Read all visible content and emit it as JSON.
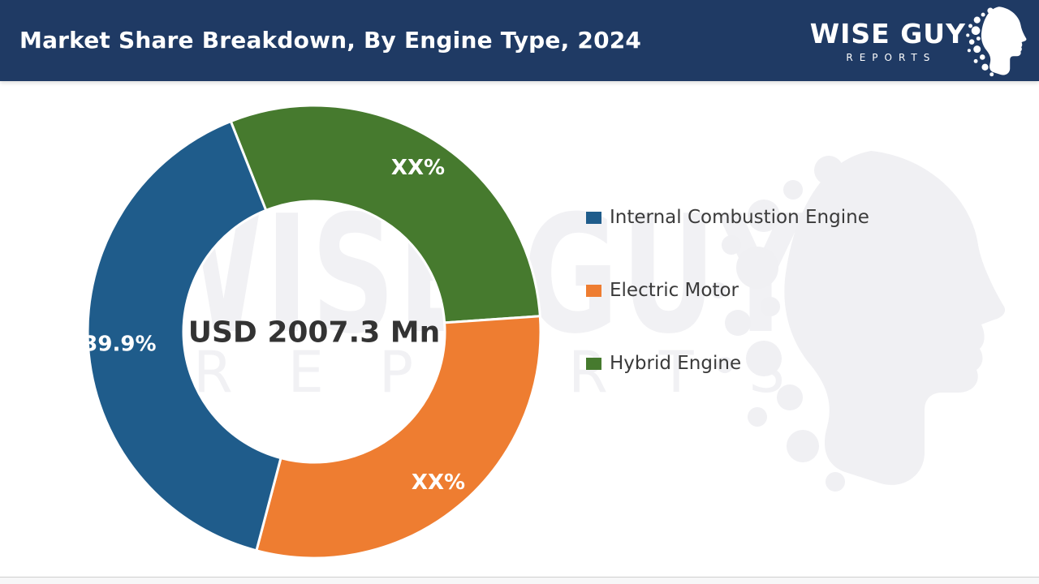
{
  "header": {
    "title": "Market Share Breakdown, By Engine Type, 2024",
    "logo": {
      "line1": "WISE GUY",
      "line2": "REPORTS"
    }
  },
  "watermark": {
    "line1": "WISE GUY",
    "line2": "REPORTS"
  },
  "theme": {
    "header_bg": "#1F3A64",
    "center_text": "#333333",
    "legend_text": "#3A3A3A",
    "watermark_color": "#F1F1F4"
  },
  "chart_data": {
    "type": "pie",
    "subtype": "donut",
    "title": "Market Share Breakdown, By Engine Type, 2024",
    "center_label": "USD 2007.3 Mn",
    "legend_position": "right",
    "start_angle_deg": -21.6,
    "clockwise": true,
    "draw_order": [
      2,
      1,
      0
    ],
    "slices": [
      {
        "name": "Internal Combustion Engine",
        "label": "39.9%",
        "value_pct": 39.9,
        "color": "#1F5C8B"
      },
      {
        "name": "Electric Motor",
        "label": "XX%",
        "value_pct": 30.2,
        "color": "#EE7D31"
      },
      {
        "name": "Hybrid Engine",
        "label": "XX%",
        "value_pct": 29.9,
        "color": "#467A2E"
      }
    ]
  }
}
